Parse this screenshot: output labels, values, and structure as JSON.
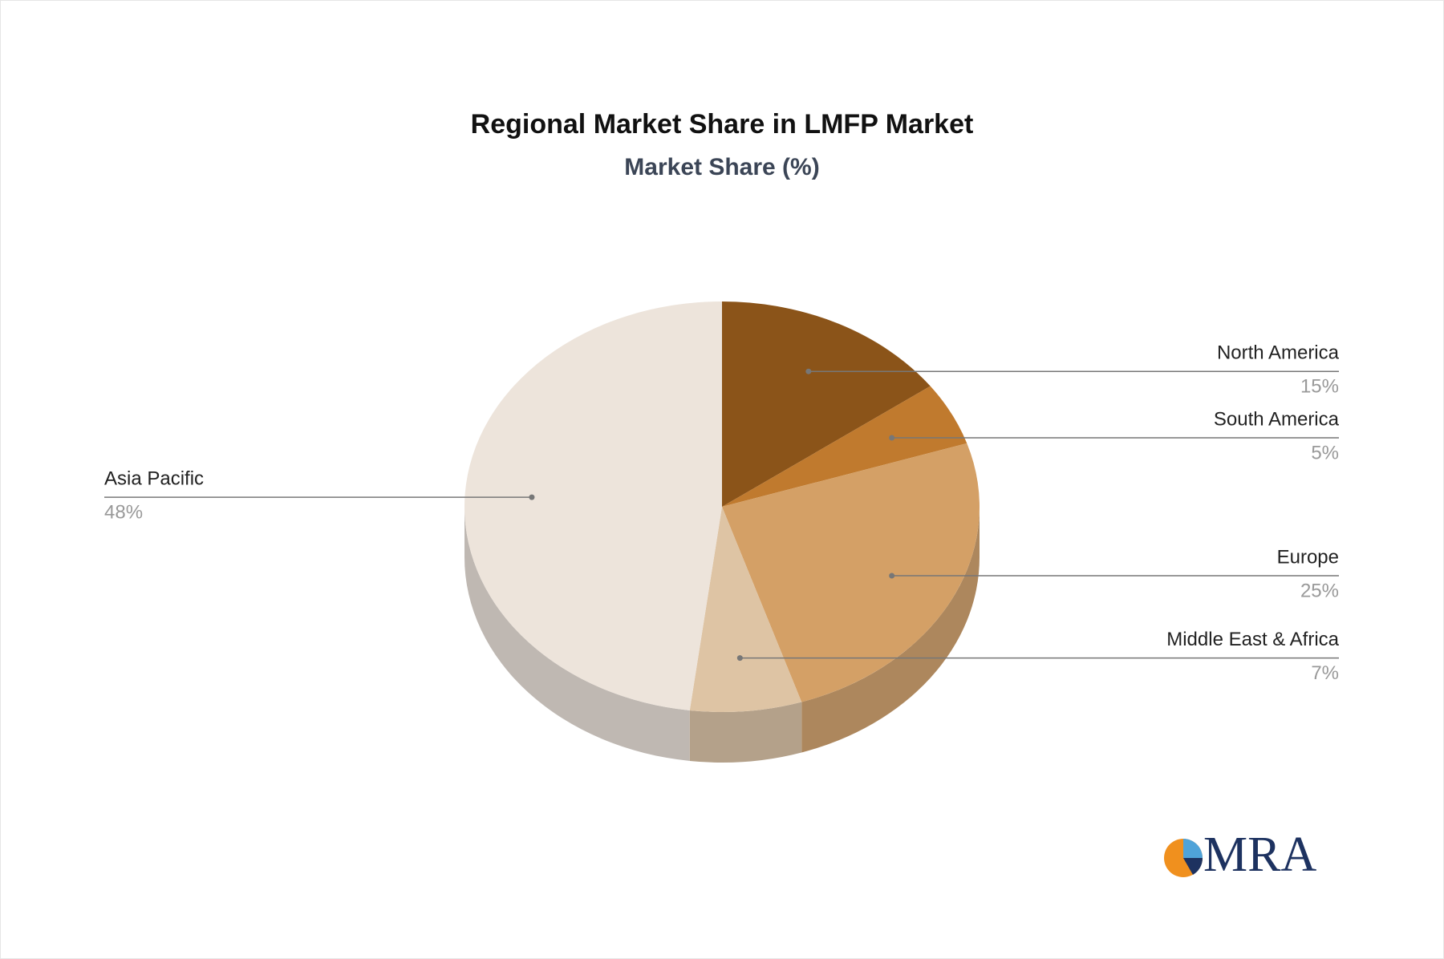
{
  "chart_data": {
    "type": "pie",
    "title": "Regional Market Share in LMFP Market",
    "subtitle": "Market Share (%)",
    "categories": [
      "North America",
      "South America",
      "Europe",
      "Middle East & Africa",
      "Asia Pacific"
    ],
    "values": [
      15,
      5,
      25,
      7,
      48
    ],
    "value_labels": [
      "15%",
      "5%",
      "25%",
      "7%",
      "48%"
    ],
    "colors": [
      "#8b5419",
      "#c07a2e",
      "#d4a066",
      "#dec4a4",
      "#ede4db"
    ]
  },
  "logo": "MRA"
}
